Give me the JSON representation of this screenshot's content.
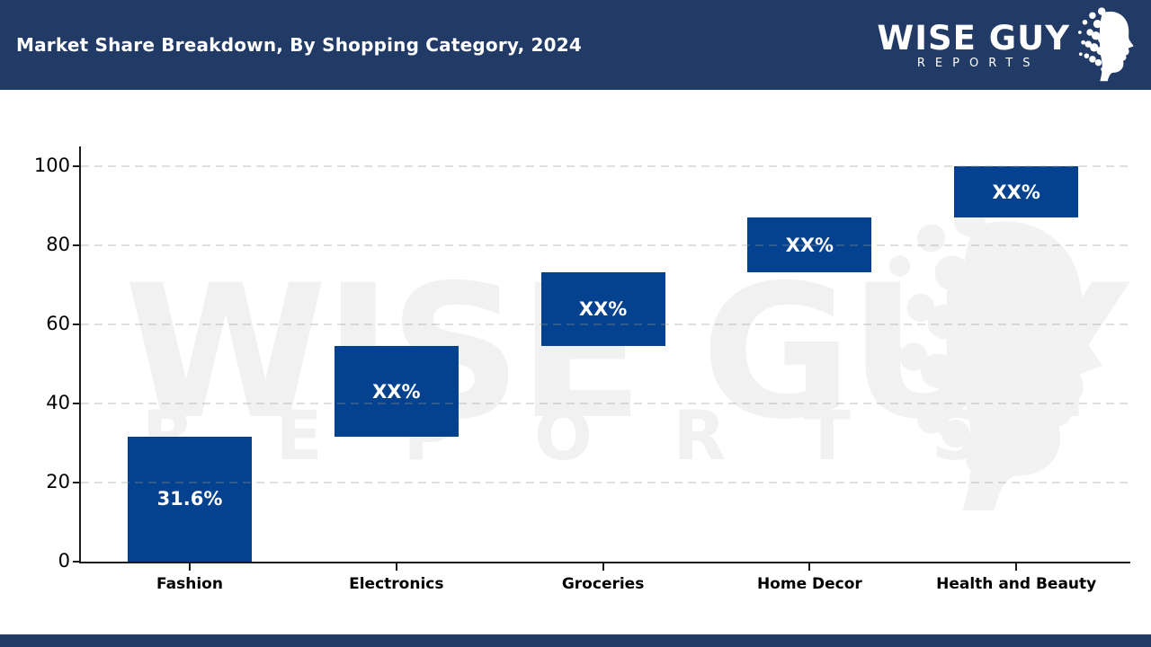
{
  "header": {
    "title": "Market Share Breakdown, By Shopping Category, 2024",
    "bg_color": "#213a66",
    "logo": {
      "line1": "WISE GUY",
      "line2": "REPORTS"
    }
  },
  "watermark": {
    "line1": "WISE GUY",
    "line2": "REPORTS"
  },
  "footer": {
    "bg_color": "#213a66"
  },
  "chart_data": {
    "type": "bar",
    "variant": "waterfall",
    "title": "Market Share Breakdown, By Shopping Category, 2024",
    "categories": [
      "Fashion",
      "Electronics",
      "Groceries",
      "Home Decor",
      "Health and Beauty"
    ],
    "segments": [
      {
        "category": "Fashion",
        "start": 0,
        "end": 31.6,
        "label": "31.6%"
      },
      {
        "category": "Electronics",
        "start": 31.6,
        "end": 54.5,
        "label": "XX%"
      },
      {
        "category": "Groceries",
        "start": 54.5,
        "end": 73.2,
        "label": "XX%"
      },
      {
        "category": "Home Decor",
        "start": 73.2,
        "end": 87.0,
        "label": "XX%"
      },
      {
        "category": "Health and Beauty",
        "start": 87.0,
        "end": 100.0,
        "label": "XX%"
      }
    ],
    "yticks": [
      0,
      20,
      40,
      60,
      80,
      100
    ],
    "ylim": [
      0,
      105
    ],
    "xlabel": "",
    "ylabel": "",
    "bar_color": "#04418f",
    "bar_label_color": "#ffffff",
    "grid": {
      "axis": "y",
      "style": "dashed",
      "drawn_over_bars": true
    },
    "legend": "none"
  }
}
